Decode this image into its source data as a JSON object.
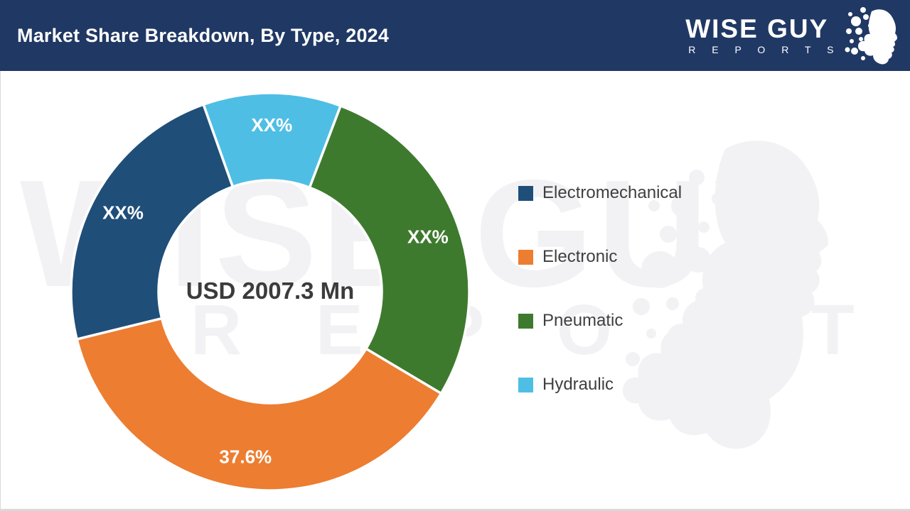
{
  "header": {
    "title": "Market Share Breakdown, By Type, 2024",
    "bg_color": "#203864",
    "logo": {
      "line1": "WISE GUY",
      "line2": "R E P O R T S"
    }
  },
  "watermark": {
    "line1": "WISE GUY",
    "line2": "R E P O R T S"
  },
  "chart_data": {
    "type": "pie",
    "variant": "donut",
    "title": "Market Share Breakdown, By Type, 2024",
    "center_label": "USD 2007.3 Mn",
    "start_angle_deg": -19.6,
    "legend_position": "right",
    "slices": [
      {
        "name": "Hydraulic",
        "value": 11.2,
        "label": "XX%",
        "color": "#4FBEE5"
      },
      {
        "name": "Pneumatic",
        "value": 27.8,
        "label": "XX%",
        "color": "#3E7A2E"
      },
      {
        "name": "Electronic",
        "value": 37.6,
        "label": "37.6%",
        "color": "#ED7D31"
      },
      {
        "name": "Electromechanical",
        "value": 23.4,
        "label": "XX%",
        "color": "#1F4E79"
      }
    ],
    "legend": [
      {
        "label": "Electromechanical",
        "color": "#1F4E79"
      },
      {
        "label": "Electronic",
        "color": "#ED7D31"
      },
      {
        "label": "Pneumatic",
        "color": "#3E7A2E"
      },
      {
        "label": "Hydraulic",
        "color": "#4FBEE5"
      }
    ]
  }
}
